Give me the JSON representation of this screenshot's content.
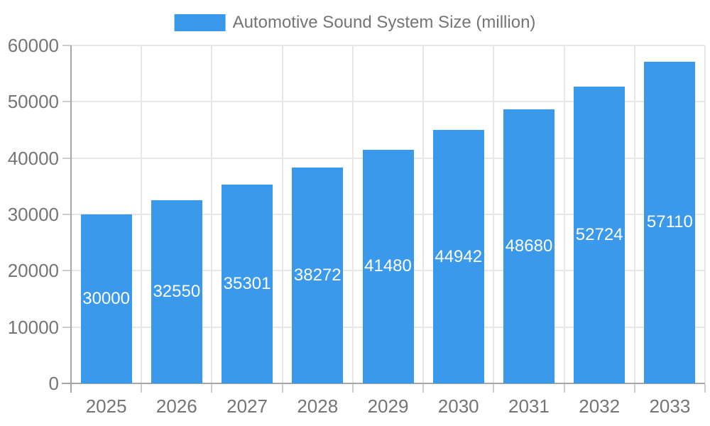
{
  "chart_data": {
    "type": "bar",
    "title": "Automotive Sound System Size (million)",
    "categories": [
      "2025",
      "2026",
      "2027",
      "2028",
      "2029",
      "2030",
      "2031",
      "2032",
      "2033"
    ],
    "values": [
      30000,
      32550,
      35301,
      38272,
      41480,
      44942,
      48680,
      52724,
      57110
    ],
    "xlabel": "",
    "ylabel": "",
    "ylim": [
      0,
      60000
    ],
    "yticks": [
      0,
      10000,
      20000,
      30000,
      40000,
      50000,
      60000
    ],
    "grid": true,
    "legend_position": "top-center",
    "colors": {
      "bar": "#3b99ec",
      "bar_value_label": "#ffffff",
      "axis_text": "#757575",
      "grid_line": "#e7e7e7",
      "axis_line": "#a6a6a6",
      "tick_mark": "#cdcdcd",
      "background": "#ffffff"
    }
  }
}
